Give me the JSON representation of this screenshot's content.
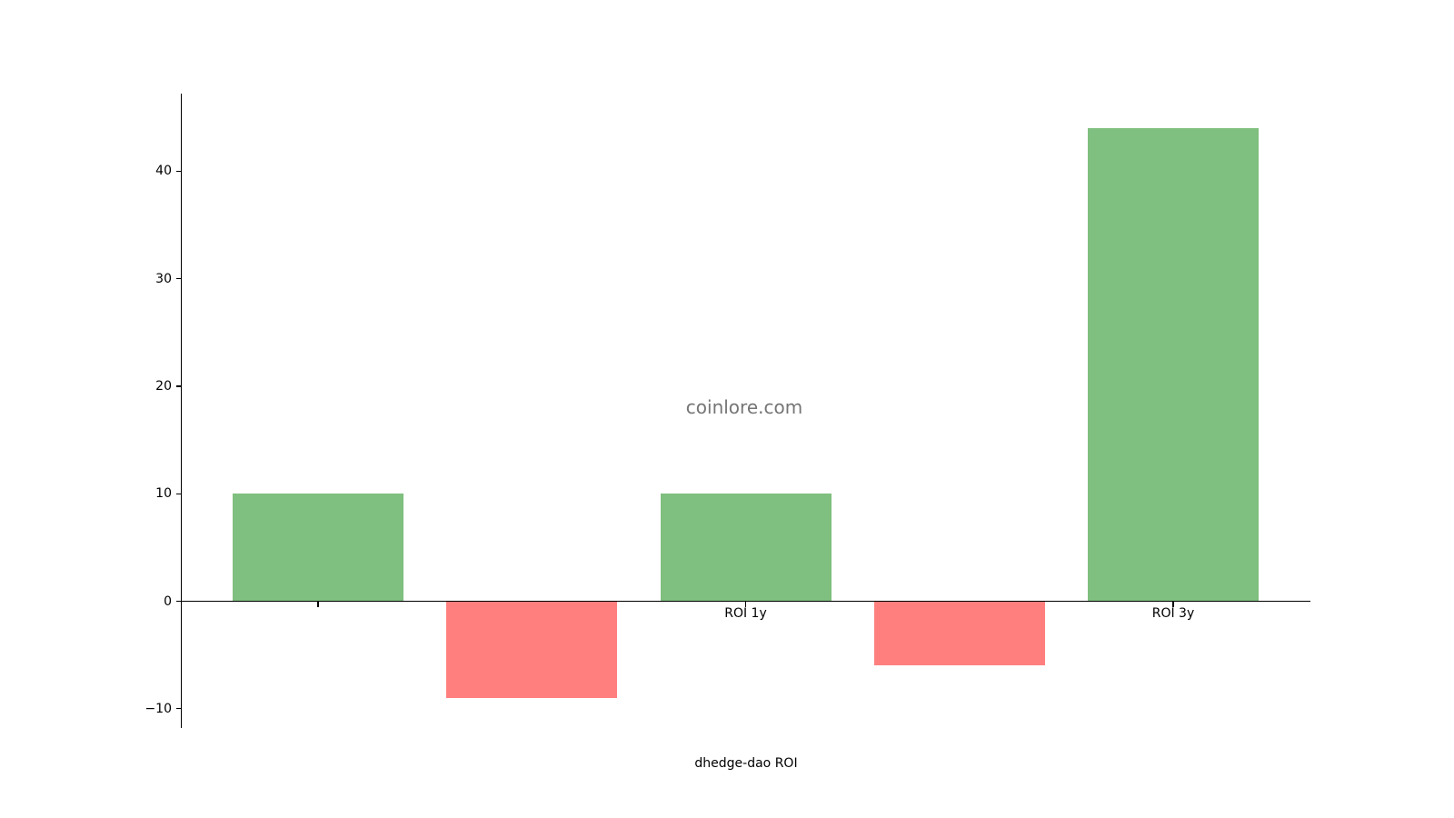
{
  "watermark": "coinlore.com",
  "chart_data": {
    "type": "bar",
    "title": "dhedge-dao ROI",
    "xlabel": "dhedge-dao ROI",
    "ylabel": "",
    "categories": [
      "",
      "",
      "ROI 1y",
      "",
      "ROI 3y"
    ],
    "values": [
      10,
      -9,
      10,
      -6,
      44
    ],
    "yticks": [
      {
        "value": 40,
        "label": "40"
      },
      {
        "value": 30,
        "label": "30"
      },
      {
        "value": 20,
        "label": "20"
      },
      {
        "value": 10,
        "label": "10"
      },
      {
        "value": 0,
        "label": "0"
      },
      {
        "value": -10,
        "label": "−10"
      }
    ],
    "ylim": [
      -11.8,
      47.2
    ],
    "grid": false,
    "legend": false,
    "colors": {
      "positive_bar": "#7fbf7f",
      "negative_bar": "#ff7f7f",
      "axis": "#000000",
      "watermark": "#757575"
    },
    "notes": "x tick marks and labels behind the negative (red) bars are hidden by the bars"
  }
}
